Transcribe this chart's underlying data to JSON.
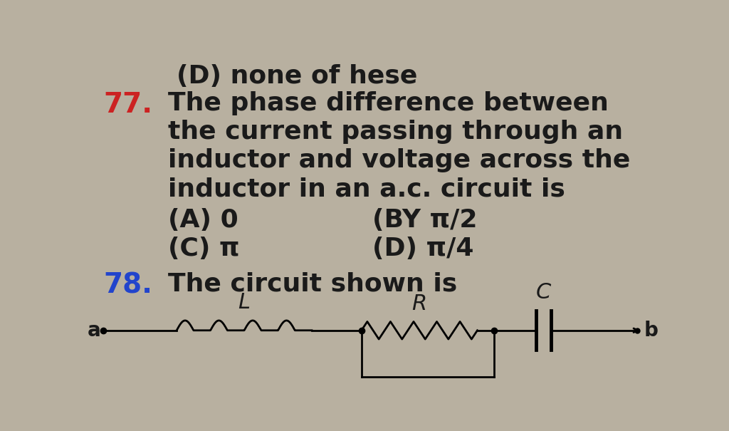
{
  "bg_color": "#b8b0a0",
  "text_color": "#1a1a1a",
  "q77_number_color": "#cc2222",
  "q78_number_color": "#2244cc",
  "line1": "(D) none of hese",
  "q77_num": "77.",
  "q77_line1": "The phase difference between",
  "q77_line2": "the current passing through an",
  "q77_line3": "inductor and voltage across the",
  "q77_line4": "inductor in an a.c. circuit is",
  "q77_optA": "(A) 0",
  "q77_optB": "(BY π/2",
  "q77_optC": "(C) π",
  "q77_optD": "(D) π/4",
  "q78_num": "78.",
  "q78_line1": "The circuit shown is",
  "font_size_main": 26,
  "font_size_small": 22,
  "font_family": "DejaVu Sans"
}
